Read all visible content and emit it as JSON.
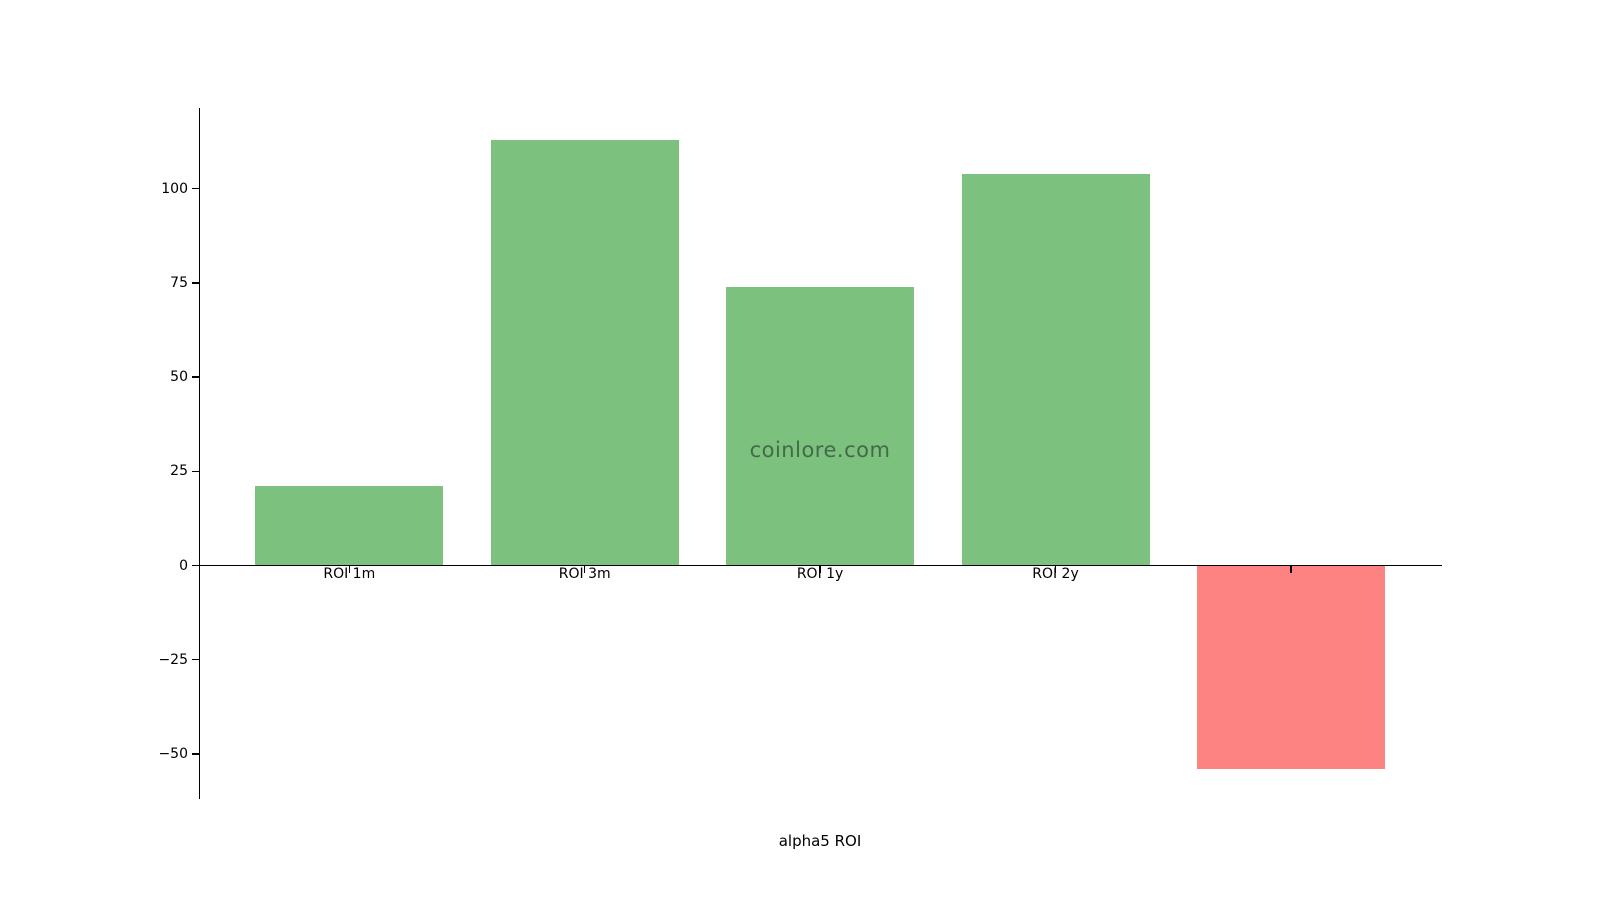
{
  "chart_data": {
    "type": "bar",
    "categories": [
      "ROI 1m",
      "ROI 3m",
      "ROI 1y",
      "ROI 2y",
      ""
    ],
    "values": [
      21,
      113,
      74,
      104,
      -54
    ],
    "series": [
      {
        "name": "alpha5 ROI",
        "values": [
          21,
          113,
          74,
          104,
          -54
        ]
      }
    ],
    "title": "",
    "xlabel": "alpha5 ROI",
    "ylabel": "",
    "ylim": [
      -62,
      121.5
    ],
    "yticks": [
      100,
      75,
      50,
      25,
      0,
      -25,
      -50
    ],
    "ytick_labels": [
      "100",
      "75",
      "50",
      "25",
      "0",
      "−25",
      "−50"
    ],
    "grid": false,
    "legend_position": "none",
    "watermark": "coinlore.com",
    "positive_color": "#7cc17e",
    "negative_color": "#fd8282"
  },
  "colors": {
    "positive": "#7cc17e",
    "negative": "#fd8282",
    "axis": "#000000",
    "text": "#000000",
    "watermark": "#436a49",
    "background": "#ffffff"
  },
  "watermark": {
    "text": "coinlore.com"
  },
  "footer": {
    "xlabel": "alpha5 ROI"
  }
}
